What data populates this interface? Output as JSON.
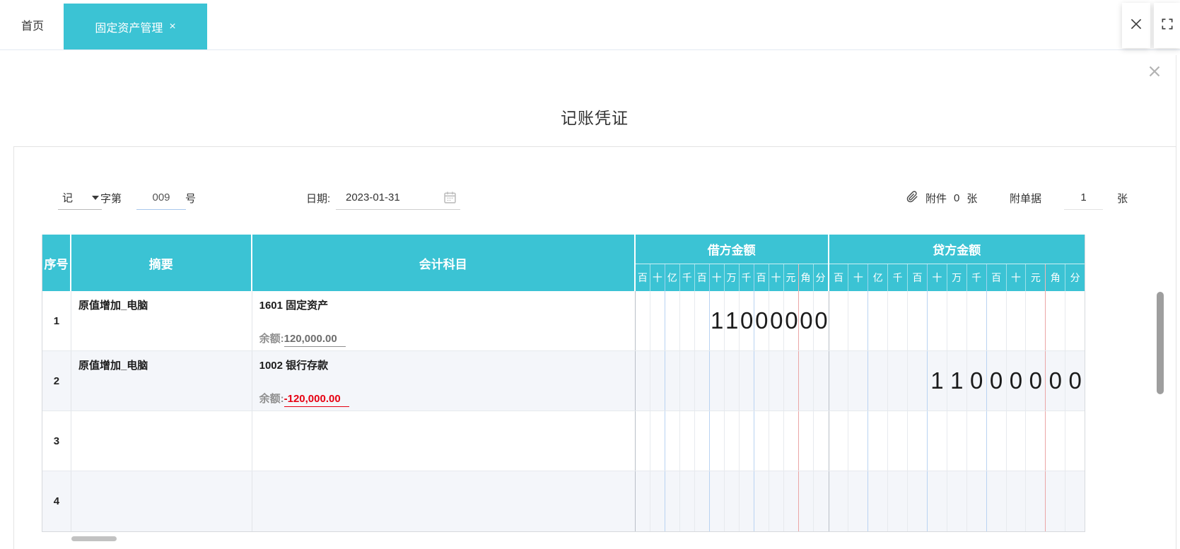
{
  "tab_bar": {
    "home_tab": "首页",
    "active_tab": {
      "label": "固定资产管理",
      "close": "×"
    }
  },
  "modal": {
    "title": "记账凭证",
    "form": {
      "word_type": "记",
      "word_label": "字第",
      "voucher_number": "009",
      "number_suffix": "号",
      "date_label": "日期:",
      "date_value": "2023-01-31",
      "attachment": {
        "label": "附件",
        "count": "0",
        "unit": "张"
      },
      "receipts": {
        "label": "附单据",
        "value": "1",
        "unit": "张"
      }
    },
    "table": {
      "headers": {
        "index": "序号",
        "summary": "摘要",
        "account": "会计科目",
        "debit": "借方金额",
        "credit": "贷方金额"
      },
      "digit_columns": [
        "百",
        "十",
        "亿",
        "千",
        "百",
        "十",
        "万",
        "千",
        "百",
        "十",
        "元",
        "角",
        "分"
      ],
      "rows": [
        {
          "index": "1",
          "summary": "原值增加_电脑",
          "account": "1601 固定资产",
          "balance_label": "余额:",
          "balance_value": "120,000.00",
          "balance_negative": false,
          "debit_digits": [
            "",
            "",
            "",
            "",
            "",
            "1",
            "1",
            "0",
            "0",
            "0",
            "0",
            "0",
            "0"
          ],
          "credit_digits": [
            "",
            "",
            "",
            "",
            "",
            "",
            "",
            "",
            "",
            "",
            "",
            "",
            ""
          ]
        },
        {
          "index": "2",
          "summary": "原值增加_电脑",
          "account": "1002 银行存款",
          "balance_label": "余额:",
          "balance_value": "-120,000.00",
          "balance_negative": true,
          "debit_digits": [
            "",
            "",
            "",
            "",
            "",
            "",
            "",
            "",
            "",
            "",
            "",
            "",
            ""
          ],
          "credit_digits": [
            "",
            "",
            "",
            "",
            "",
            "1",
            "1",
            "0",
            "0",
            "0",
            "0",
            "0",
            "0"
          ]
        },
        {
          "index": "3",
          "summary": "",
          "account": "",
          "balance_label": "",
          "balance_value": "",
          "balance_negative": false,
          "debit_digits": [
            "",
            "",
            "",
            "",
            "",
            "",
            "",
            "",
            "",
            "",
            "",
            "",
            ""
          ],
          "credit_digits": [
            "",
            "",
            "",
            "",
            "",
            "",
            "",
            "",
            "",
            "",
            "",
            "",
            ""
          ]
        },
        {
          "index": "4",
          "summary": "",
          "account": "",
          "balance_label": "",
          "balance_value": "",
          "balance_negative": false,
          "debit_digits": [
            "",
            "",
            "",
            "",
            "",
            "",
            "",
            "",
            "",
            "",
            "",
            "",
            ""
          ],
          "credit_digits": [
            "",
            "",
            "",
            "",
            "",
            "",
            "",
            "",
            "",
            "",
            "",
            "",
            ""
          ]
        }
      ]
    }
  },
  "colors": {
    "accent": "#3bc3d4",
    "negative_red": "#e60012",
    "grid_blue": "#b9d3f2",
    "grid_red": "#eba6a6"
  }
}
